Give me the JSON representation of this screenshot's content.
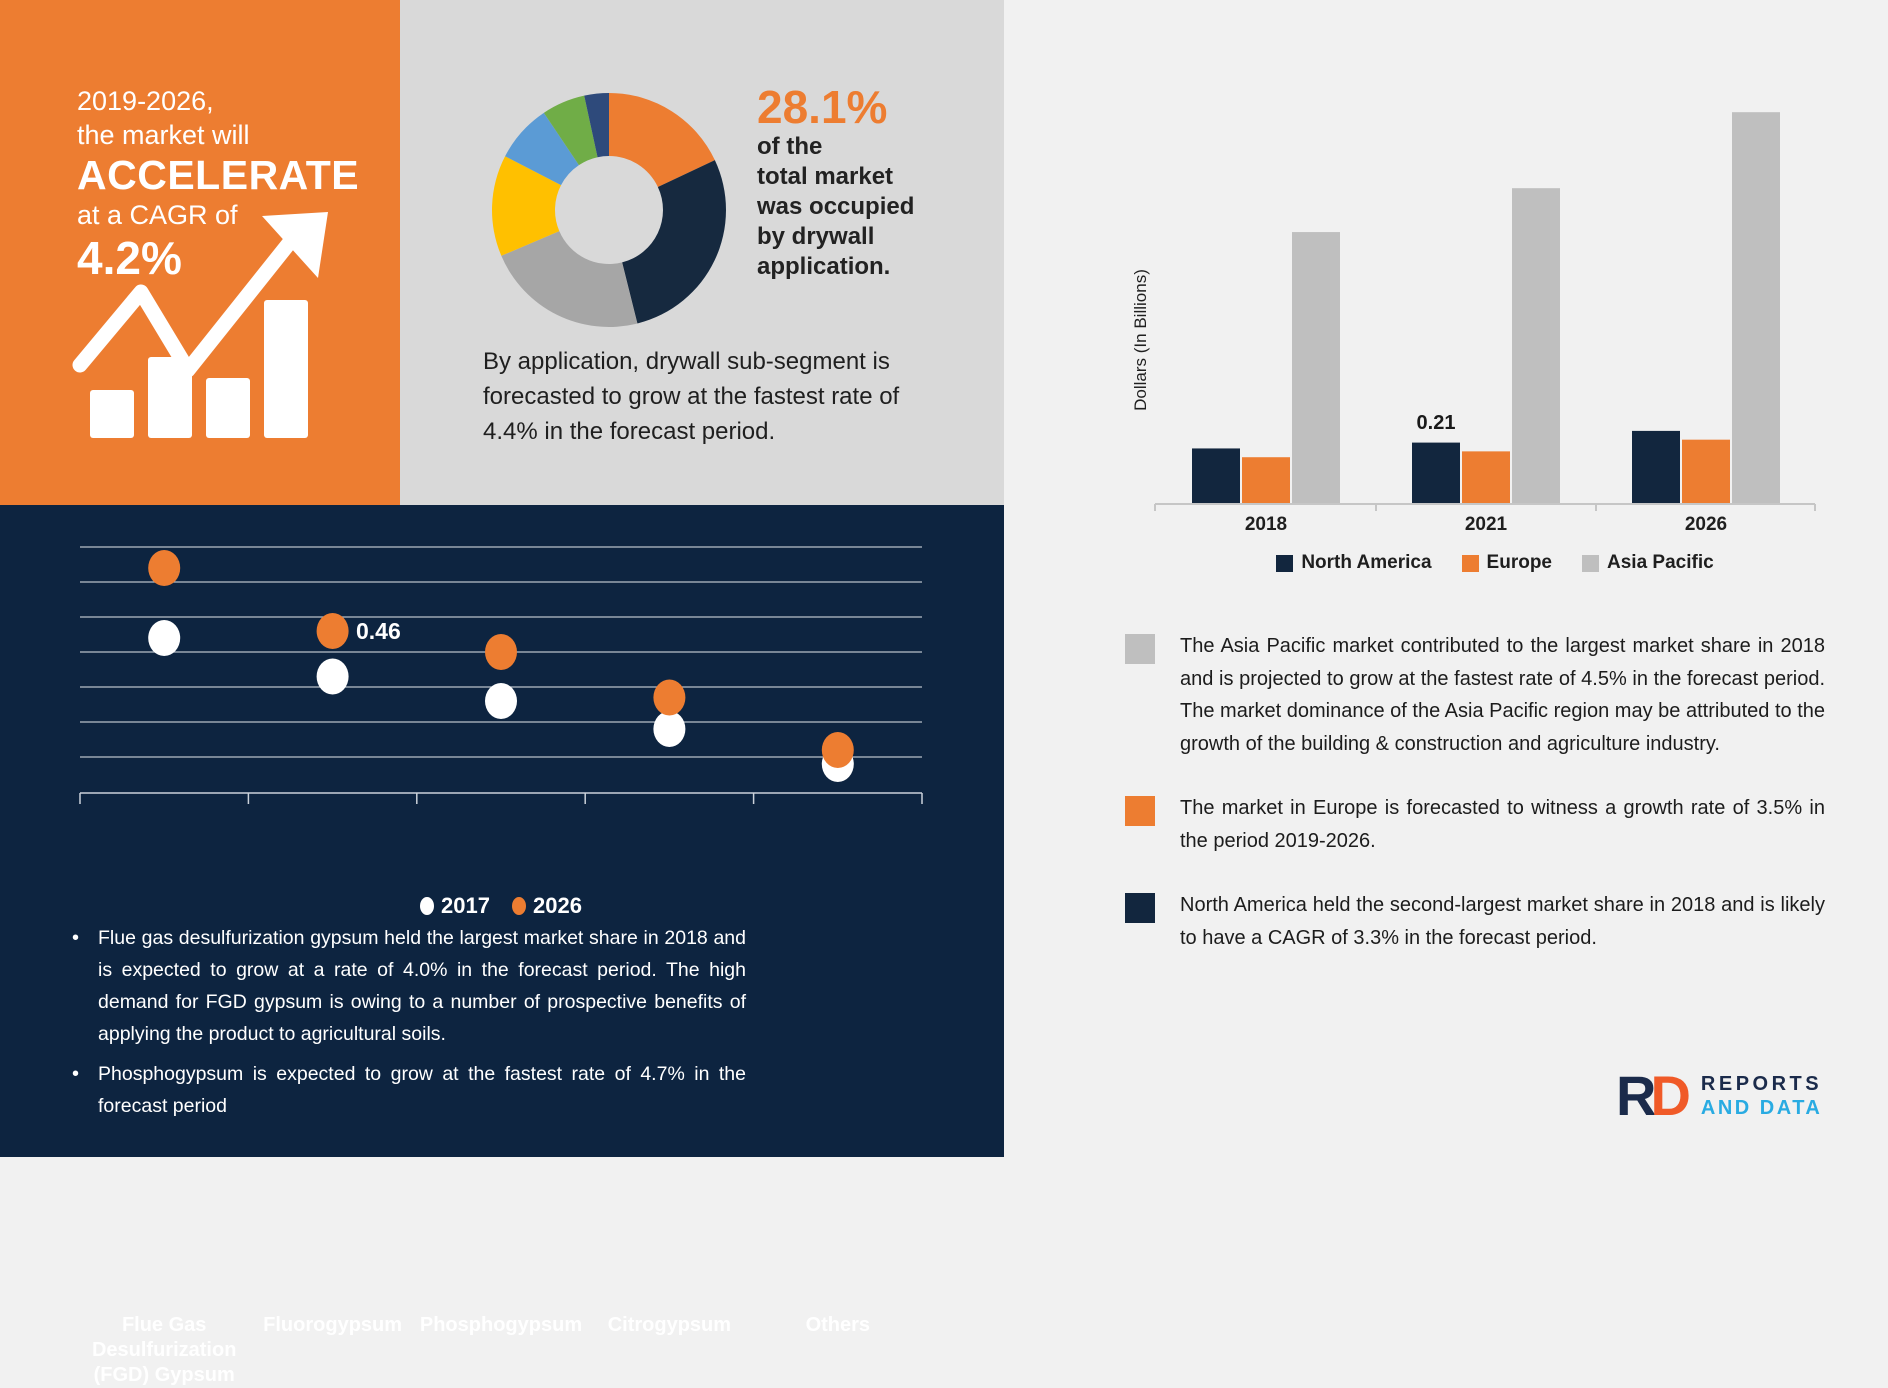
{
  "colors": {
    "orange": "#ED7D31",
    "navy": "#12263E",
    "navy_panel": "#0D2440",
    "gray_panel": "#D9D9D9",
    "light_panel": "#F1F1F1",
    "bar_gray": "#BFBFBF",
    "donut_gray": "#A6A6A6",
    "yellow": "#FFC000",
    "blue": "#5B9BD5",
    "green": "#70AD47",
    "steel_blue": "#2E4A7B",
    "logo_blue": "#29ABE2",
    "logo_orange": "#F05A28"
  },
  "left_panel": {
    "period": "2019-2026,",
    "lead": "the market will",
    "emphasis": "ACCELERATE",
    "cagr_label": "at a CAGR of",
    "cagr_value": "4.2%"
  },
  "application_panel": {
    "stat_value": "28.1%",
    "stat_lines": [
      "of the",
      "total market",
      "was occupied",
      "by drywall",
      "application."
    ],
    "body": "By application, drywall sub-segment is forecasted to grow at the fastest rate of 4.4% in the forecast period."
  },
  "product_panel": {
    "bullet_marker": "•",
    "bullets": [
      {
        "text": "Flue gas desulfurization gypsum held the largest market share in 2018 and is expected to grow at a rate of 4.0% in the forecast period. The high demand for FGD gypsum is owing to a number of prospective benefits of applying the product to agricultural soils."
      },
      {
        "text": "Phosphogypsum is expected to grow at the fastest rate of 4.7% in the forecast period"
      }
    ]
  },
  "region_panel": {
    "bullets": [
      {
        "marker_color": "#BFBFBF",
        "text": "The Asia Pacific market contributed to the largest market share in 2018 and is projected to grow at the fastest rate of 4.5% in the forecast period. The market dominance of the Asia Pacific region may be attributed to the growth of the building & construction and agriculture industry."
      },
      {
        "marker_color": "#ED7D31",
        "text": "The market in Europe is forecasted to witness a growth rate of 3.5% in the period 2019-2026."
      },
      {
        "marker_color": "#12263E",
        "text": "North America held the second-largest market share in 2018 and is likely to have a CAGR of 3.3% in the forecast period."
      }
    ]
  },
  "logo": {
    "letter_r": "R",
    "letter_d": "D",
    "word_top": "REPORTS",
    "word_bottom": "AND DATA"
  },
  "chart_data": [
    {
      "type": "pie",
      "subtype": "donut",
      "slices": [
        {
          "label": "",
          "value": 18.0,
          "color": "#ED7D31"
        },
        {
          "label": "Drywall",
          "value": 28.1,
          "color": "#16293F"
        },
        {
          "label": "",
          "value": 22.5,
          "color": "#A6A6A6"
        },
        {
          "label": "",
          "value": 14.0,
          "color": "#FFC000"
        },
        {
          "label": "",
          "value": 8.0,
          "color": "#5B9BD5"
        },
        {
          "label": "",
          "value": 6.0,
          "color": "#70AD47"
        },
        {
          "label": "",
          "value": 3.4,
          "color": "#2E4A7B"
        }
      ],
      "note": "Only the drywall share (28.1%) is stated in the graphic; other slice values are estimated from arc angles."
    },
    {
      "type": "bar",
      "categories": [
        "2018",
        "2021",
        "2026"
      ],
      "series": [
        {
          "name": "North America",
          "color": "#12263E",
          "values": [
            0.19,
            0.21,
            0.25
          ]
        },
        {
          "name": "Europe",
          "color": "#ED7D31",
          "values": [
            0.16,
            0.18,
            0.22
          ]
        },
        {
          "name": "Asia Pacific",
          "color": "#BFBFBF",
          "values": [
            0.93,
            1.08,
            1.34
          ]
        }
      ],
      "ylabel": "Dollars (In Billions)",
      "ylim": [
        0,
        1.45
      ],
      "grid": false,
      "legend_position": "bottom",
      "data_labels": [
        {
          "series": "North America",
          "category": "2021",
          "text": "0.21"
        }
      ],
      "note": "Only the 0.21 value is labeled in the graphic; other values estimated from bar heights."
    },
    {
      "type": "scatter",
      "subtype": "dot-plot",
      "categories": [
        "Flue Gas Desulfurization (FGD) Gypsum",
        "Fluorogypsum",
        "Phosphogypsum",
        "Citrogypsum",
        "Others"
      ],
      "series": [
        {
          "name": "2017",
          "color": "#FFFFFF",
          "values": [
            0.44,
            0.33,
            0.26,
            0.18,
            0.08
          ]
        },
        {
          "name": "2026",
          "color": "#ED7D31",
          "values": [
            0.64,
            0.46,
            0.4,
            0.27,
            0.12
          ]
        }
      ],
      "ylim": [
        0,
        0.7
      ],
      "gridlines": [
        0.1,
        0.2,
        0.3,
        0.4,
        0.5,
        0.6,
        0.7
      ],
      "grid": true,
      "legend_position": "bottom",
      "data_labels": [
        {
          "series": "2026",
          "category": "Fluorogypsum",
          "text": "0.46"
        }
      ],
      "note": "Only the 0.46 value is labeled in the graphic; other values estimated from dot positions."
    }
  ]
}
